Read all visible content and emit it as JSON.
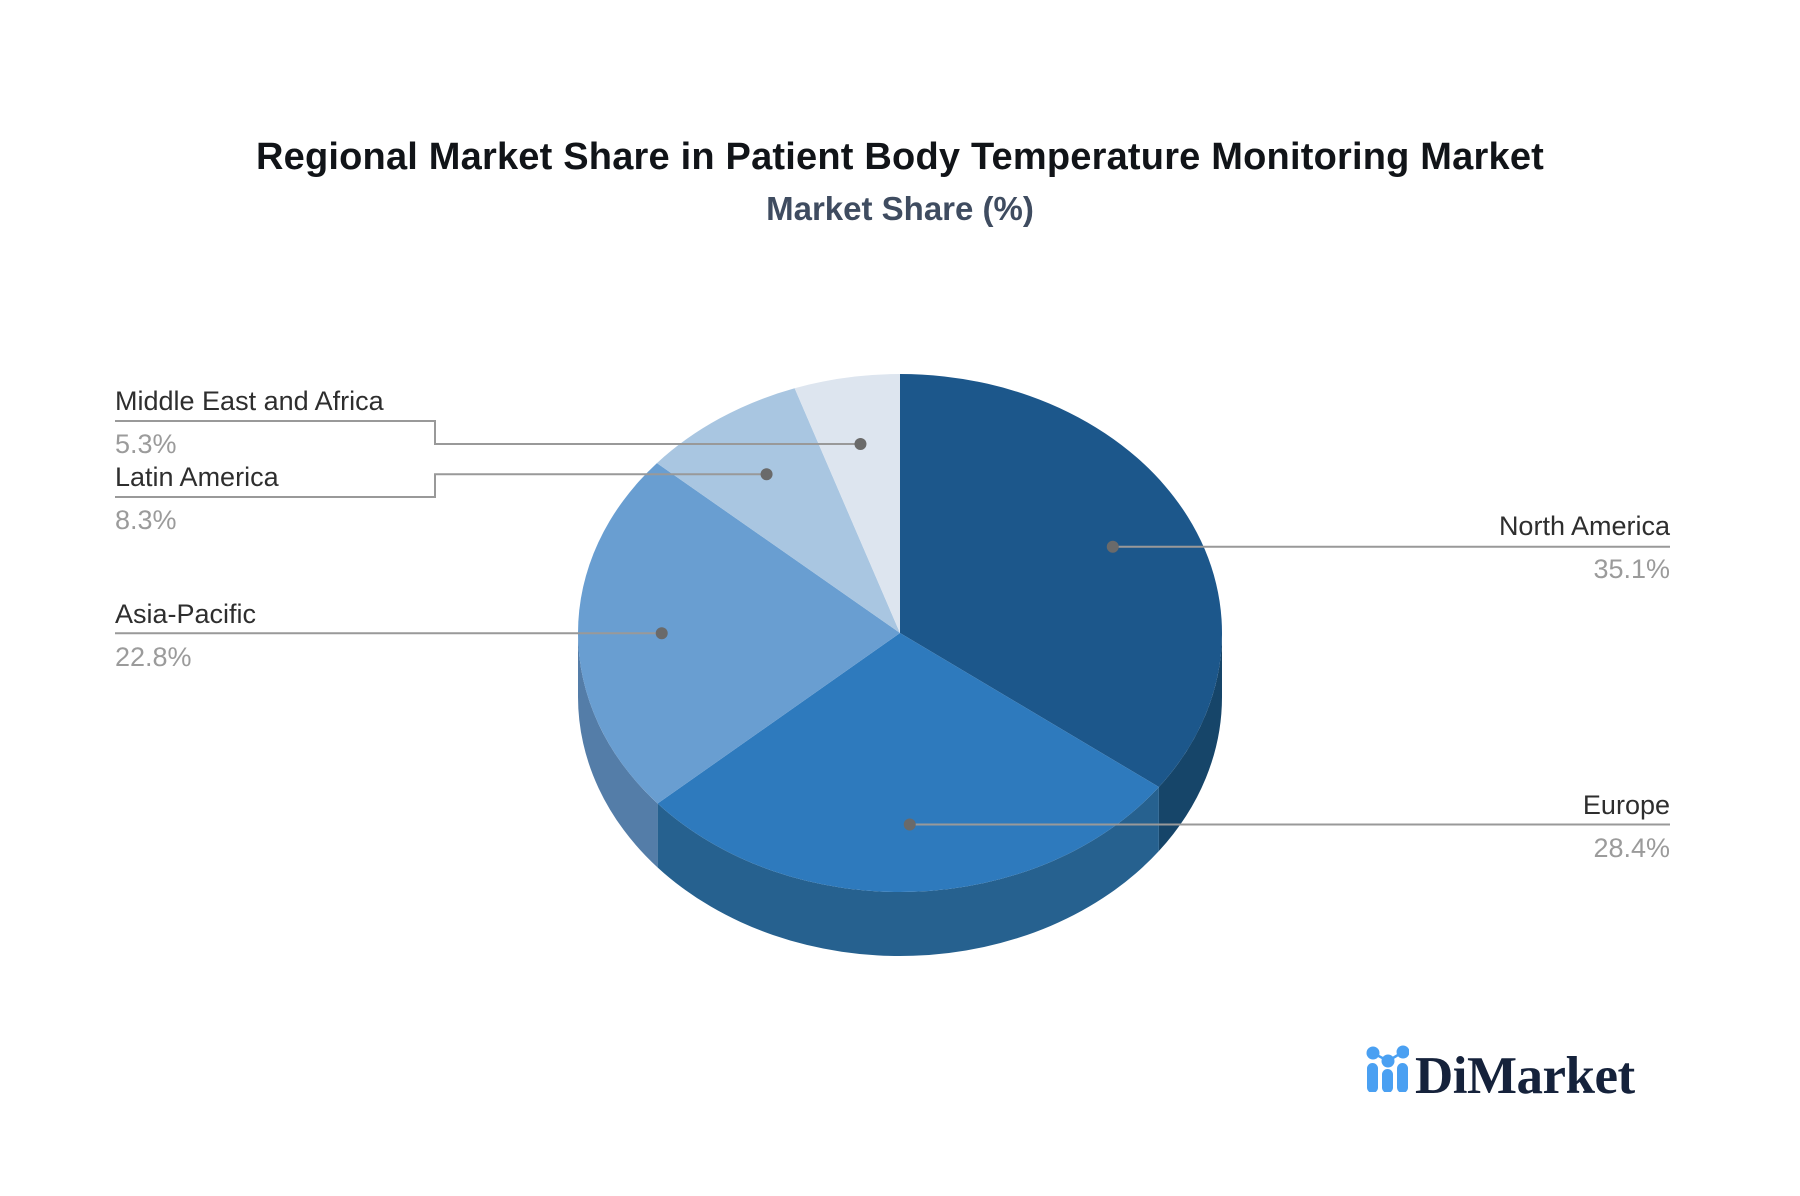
{
  "page": {
    "background": "#ffffff"
  },
  "header": {
    "title": "Regional Market Share in Patient Body Temperature Monitoring Market",
    "subtitle": "Market Share (%)"
  },
  "chart_data": {
    "type": "pie",
    "style": "3d",
    "title": "Regional Market Share in Patient Body Temperature Monitoring Market",
    "subtitle": "Market Share (%)",
    "unit": "%",
    "rotation": "clockwise-from-top",
    "legend": "none (callout labels)",
    "slices": [
      {
        "label": "North America",
        "value": 35.1,
        "value_label": "35.1%",
        "color": "#1c578b",
        "side_color": "#164569",
        "callout": "right"
      },
      {
        "label": "Europe",
        "value": 28.4,
        "value_label": "28.4%",
        "color": "#2e7abd",
        "side_color": "#26618f",
        "callout": "right"
      },
      {
        "label": "Asia-Pacific",
        "value": 22.8,
        "value_label": "22.8%",
        "color": "#699ed1",
        "side_color": "#547da8",
        "callout": "left"
      },
      {
        "label": "Latin America",
        "value": 8.3,
        "value_label": "8.3%",
        "color": "#a9c6e1",
        "side_color": "#8aa8c5",
        "callout": "left"
      },
      {
        "label": "Middle East and Africa",
        "value": 5.3,
        "value_label": "5.3%",
        "color": "#dde5ef",
        "side_color": "#b9c6d6",
        "callout": "left"
      }
    ],
    "callout_colors": {
      "line": "#999999",
      "dot": "#6a6a6a",
      "label_text": "#2e2e2e",
      "value_text": "#9b9b9b"
    }
  },
  "branding": {
    "logo_text": "DiMarket",
    "logo_icon": "bar-line-chart-icon",
    "logo_icon_color": "#4aa0f2",
    "logo_text_color": "#15223b"
  }
}
